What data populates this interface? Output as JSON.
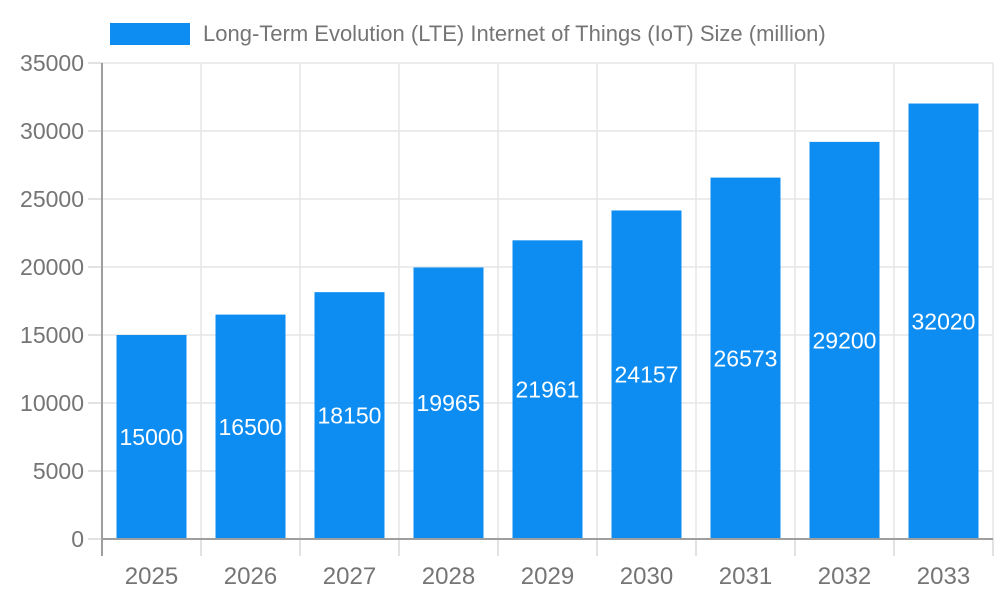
{
  "legend": {
    "label": "Long-Term Evolution (LTE) Internet of Things (IoT) Size (million)"
  },
  "colors": {
    "bar": "#0d8df2",
    "bar_label": "#ffffff",
    "axis_text": "#757575",
    "grid": "#e6e6e6",
    "tick": "#d9d9d9",
    "axis_line": "#9e9e9e",
    "background": "#ffffff"
  },
  "chart_data": {
    "type": "bar",
    "title": "Long-Term Evolution (LTE) Internet of Things (IoT) Size (million)",
    "categories": [
      "2025",
      "2026",
      "2027",
      "2028",
      "2029",
      "2030",
      "2031",
      "2032",
      "2033"
    ],
    "values": [
      15000,
      16500,
      18150,
      19965,
      21961,
      24157,
      26573,
      29200,
      32020
    ],
    "xlabel": "",
    "ylabel": "",
    "ylim": [
      0,
      35000
    ],
    "ytick_step": 5000,
    "ytick_labels": [
      "0",
      "5000",
      "10000",
      "15000",
      "20000",
      "25000",
      "30000",
      "35000"
    ],
    "grid": true,
    "legend_position": "top",
    "bar_value_labels": "inside-center-white"
  }
}
